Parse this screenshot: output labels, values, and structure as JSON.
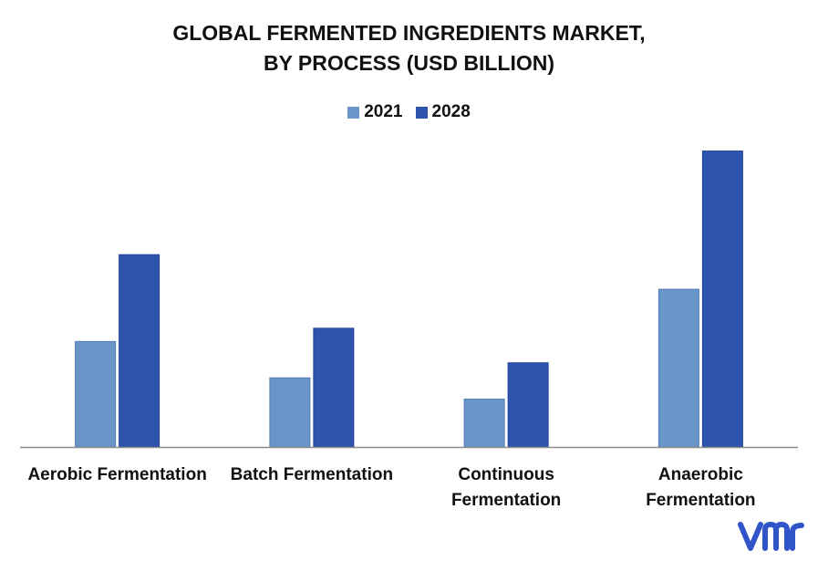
{
  "title_lines": [
    "GLOBAL FERMENTED INGREDIENTS MARKET,",
    "BY PROCESS (USD BILLION)"
  ],
  "colors": {
    "2021": "#6a95c9",
    "2028": "#2e55ad",
    "axis": "#8c8c8c",
    "text": "#111111",
    "logo": "#2f55c8"
  },
  "logo": {
    "text": "vmr",
    "icon": "vmr-logo-icon"
  },
  "chart_data": {
    "type": "bar",
    "categories": [
      [
        "Aerobic Fermentation"
      ],
      [
        "Batch Fermentation"
      ],
      [
        "Continuous",
        "Fermentation"
      ],
      [
        "Anaerobic",
        "Fermentation"
      ]
    ],
    "series": [
      {
        "name": "2021",
        "values": [
          11.9,
          7.8,
          5.4,
          17.8
        ]
      },
      {
        "name": "2028",
        "values": [
          21.7,
          13.4,
          9.5,
          33.4
        ]
      }
    ],
    "ylim": [
      0,
      35
    ],
    "grid": false,
    "legend_position": "top-center",
    "title": "GLOBAL FERMENTED INGREDIENTS MARKET, BY PROCESS (USD BILLION)"
  }
}
